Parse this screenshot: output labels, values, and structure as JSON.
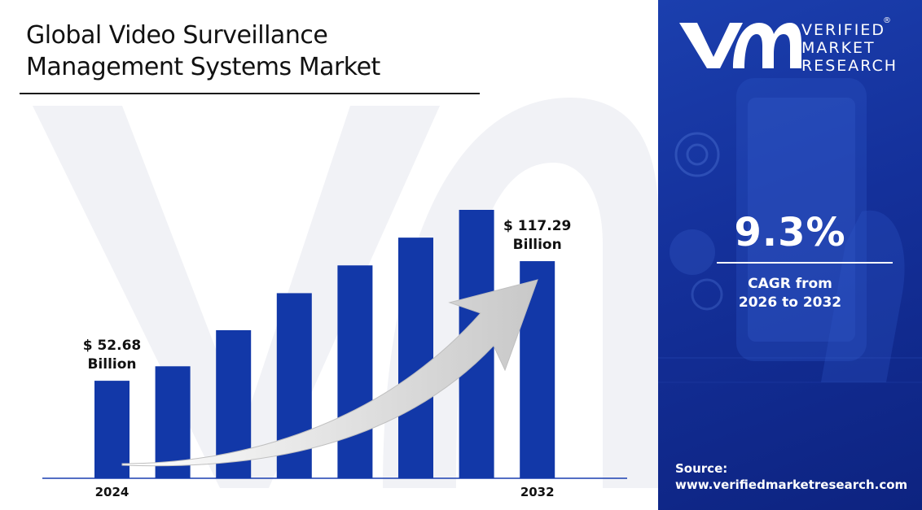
{
  "title_line1": "Global Video Surveillance",
  "title_line2": "Management Systems Market",
  "brand": {
    "line1": "VERIFIED",
    "line2": "MARKET",
    "line3": "RESEARCH",
    "reg": "®"
  },
  "cagr": {
    "value": "9.3%",
    "label_line1": "CAGR from",
    "label_line2": "2026 to 2032"
  },
  "source": {
    "label": "Source:",
    "url": "www.verifiedmarketresearch.com"
  },
  "colors": {
    "bar": "#1238a8",
    "panel": "#1636a3",
    "arrow": "#d9d9d9",
    "axis": "#1a3fb0"
  },
  "chart_data": {
    "type": "bar",
    "categories": [
      "2024",
      "",
      "",
      "",
      "",
      "",
      "",
      "2032"
    ],
    "values": [
      52.68,
      60.5,
      80.0,
      100.0,
      115.0,
      130.0,
      145.0,
      117.29
    ],
    "data_labels": [
      {
        "index": 0,
        "line1": "$ 52.68",
        "line2": "Billion"
      },
      {
        "index": 7,
        "line1": "$ 117.29",
        "line2": "Billion"
      }
    ],
    "title": "",
    "xlabel": "",
    "ylabel": "",
    "trend_arrow": true,
    "grid": false
  }
}
